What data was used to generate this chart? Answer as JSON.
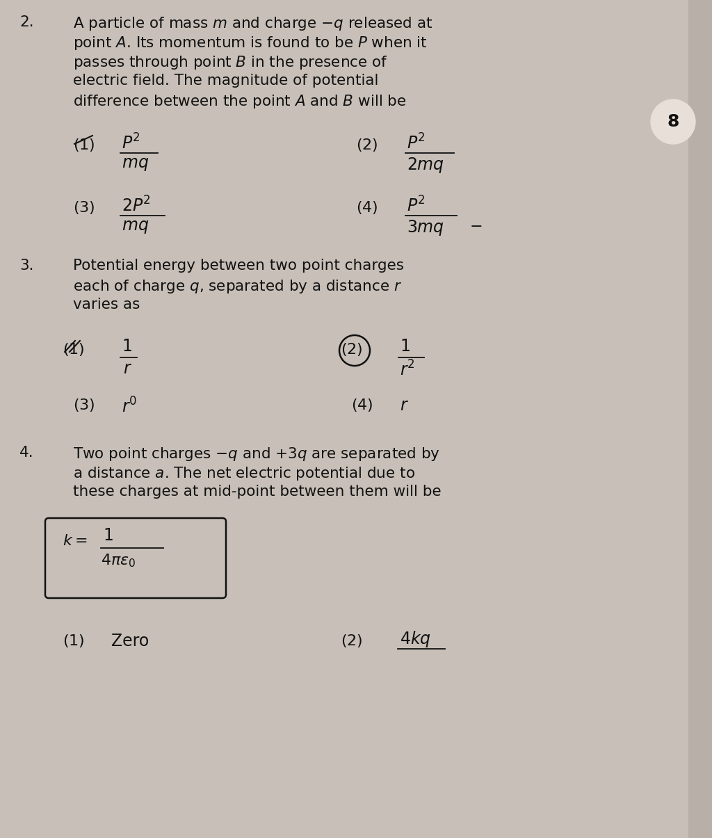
{
  "bg_color": "#c8c0b8",
  "text_color": "#111111",
  "font_size_main": 15.5,
  "font_size_options": 16,
  "font_size_number": 16,
  "badge_number": "8",
  "q2_lines": [
    "A particle of mass $m$ and charge $-q$ released at",
    "point $A$. Its momentum is found to be $P$ when it",
    "passes through point $B$ in the presence of",
    "electric field. The magnitude of potential",
    "difference between the point $A$ and $B$ will be"
  ],
  "q3_lines": [
    "Potential energy between two point charges",
    "each of charge $q$, separated by a distance $r$",
    "varies as"
  ],
  "q4_lines": [
    "Two point charges $-q$ and $+3q$ are separated by",
    "a distance $a$. The net electric potential due to",
    "these charges at mid-point between them will be"
  ]
}
